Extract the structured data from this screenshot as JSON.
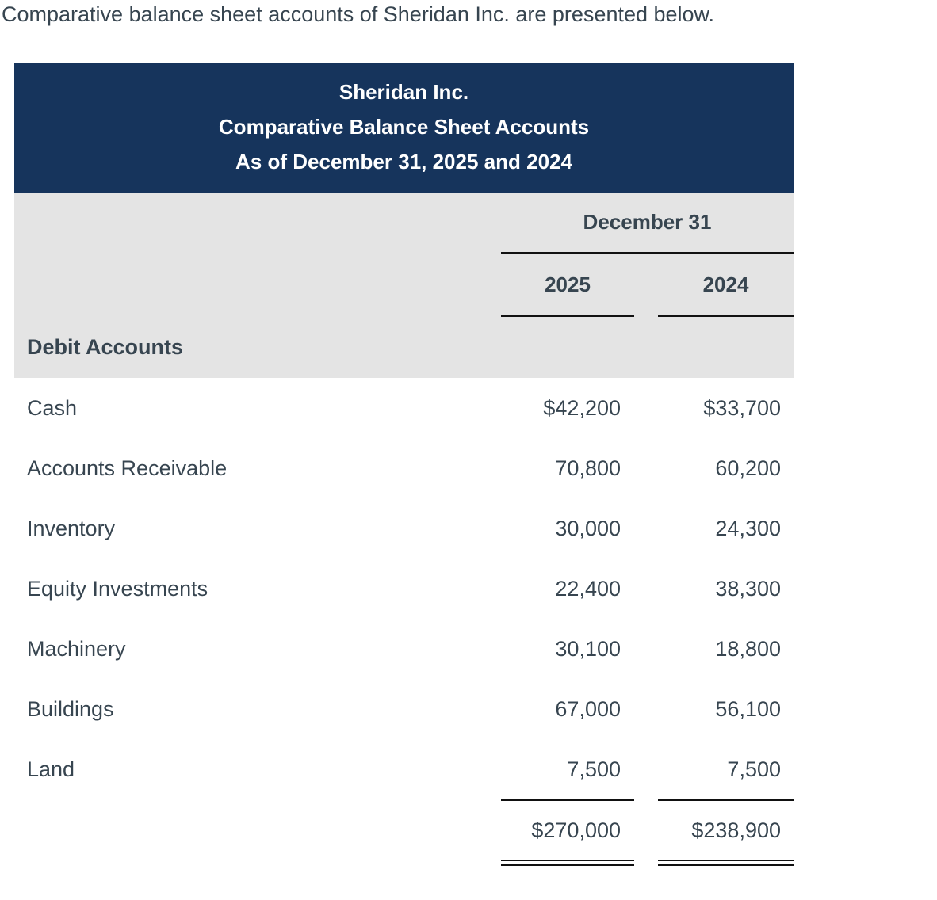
{
  "intro": "Comparative balance sheet accounts of Sheridan Inc. are presented below.",
  "table": {
    "header": {
      "company": "Sheridan Inc.",
      "title": "Comparative Balance Sheet Accounts",
      "subtitle": "As of December 31, 2025 and 2024"
    },
    "columns": {
      "group_label": "December 31",
      "year_1": "2025",
      "year_2": "2024"
    },
    "section_label": "Debit Accounts",
    "rows": [
      {
        "label": "Cash",
        "y2025": "$42,200",
        "y2024": "$33,700"
      },
      {
        "label": "Accounts Receivable",
        "y2025": "70,800",
        "y2024": "60,200"
      },
      {
        "label": "Inventory",
        "y2025": "30,000",
        "y2024": "24,300"
      },
      {
        "label": "Equity Investments",
        "y2025": "22,400",
        "y2024": "38,300"
      },
      {
        "label": "Machinery",
        "y2025": "30,100",
        "y2024": "18,800"
      },
      {
        "label": "Buildings",
        "y2025": "67,000",
        "y2024": "56,100"
      },
      {
        "label": "Land",
        "y2025": "7,500",
        "y2024": "7,500"
      }
    ],
    "totals": {
      "y2025": "$270,000",
      "y2024": "$238,900"
    }
  },
  "colors": {
    "navy": "#16345c",
    "gray": "#e4e4e4",
    "text": "#374550",
    "line": "#111111"
  }
}
